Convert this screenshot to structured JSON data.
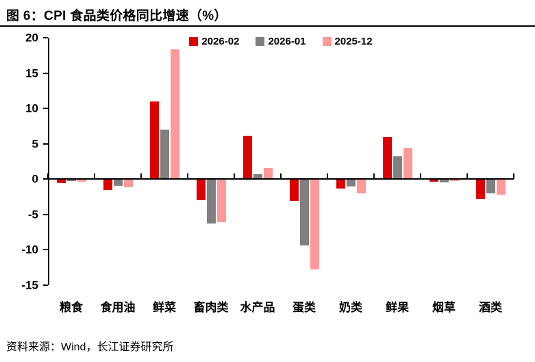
{
  "title": "图 6：CPI 食品类价格同比增速（%）",
  "source": "资料来源：Wind，长江证券研究所",
  "colors": {
    "series_red": "#DC0000",
    "series_gray": "#808080",
    "series_pink": "#FF9999",
    "axis": "#000000",
    "text": "#000000",
    "background": "#FFFFFF"
  },
  "chart_data": {
    "type": "bar",
    "title": "图 6：CPI 食品类价格同比增速（%）",
    "xlabel": "",
    "ylabel": "",
    "categories": [
      "粮食",
      "食用油",
      "鲜菜",
      "畜肉类",
      "水产品",
      "蛋类",
      "奶类",
      "鲜果",
      "烟草",
      "酒类"
    ],
    "series": [
      {
        "name": "2026-02",
        "color": "#DC0000",
        "values": [
          -0.5,
          -1.4,
          11.0,
          -2.9,
          6.1,
          -3.0,
          -1.2,
          5.9,
          -0.3,
          -2.7
        ]
      },
      {
        "name": "2026-01",
        "color": "#808080",
        "values": [
          -0.2,
          -0.8,
          7.0,
          -6.2,
          0.7,
          -9.3,
          -0.9,
          3.2,
          -0.4,
          -1.9
        ]
      },
      {
        "name": "2025-12",
        "color": "#FF9999",
        "values": [
          -0.3,
          -1.0,
          18.4,
          -6.0,
          1.6,
          -12.7,
          -1.9,
          4.4,
          -0.2,
          -2.1
        ]
      }
    ],
    "ylim": [
      -15,
      20
    ],
    "ytick_interval": 5,
    "yticks": [
      20,
      15,
      10,
      5,
      0,
      -5,
      -10,
      -15
    ],
    "legend_position": "top-center",
    "grid": false
  }
}
